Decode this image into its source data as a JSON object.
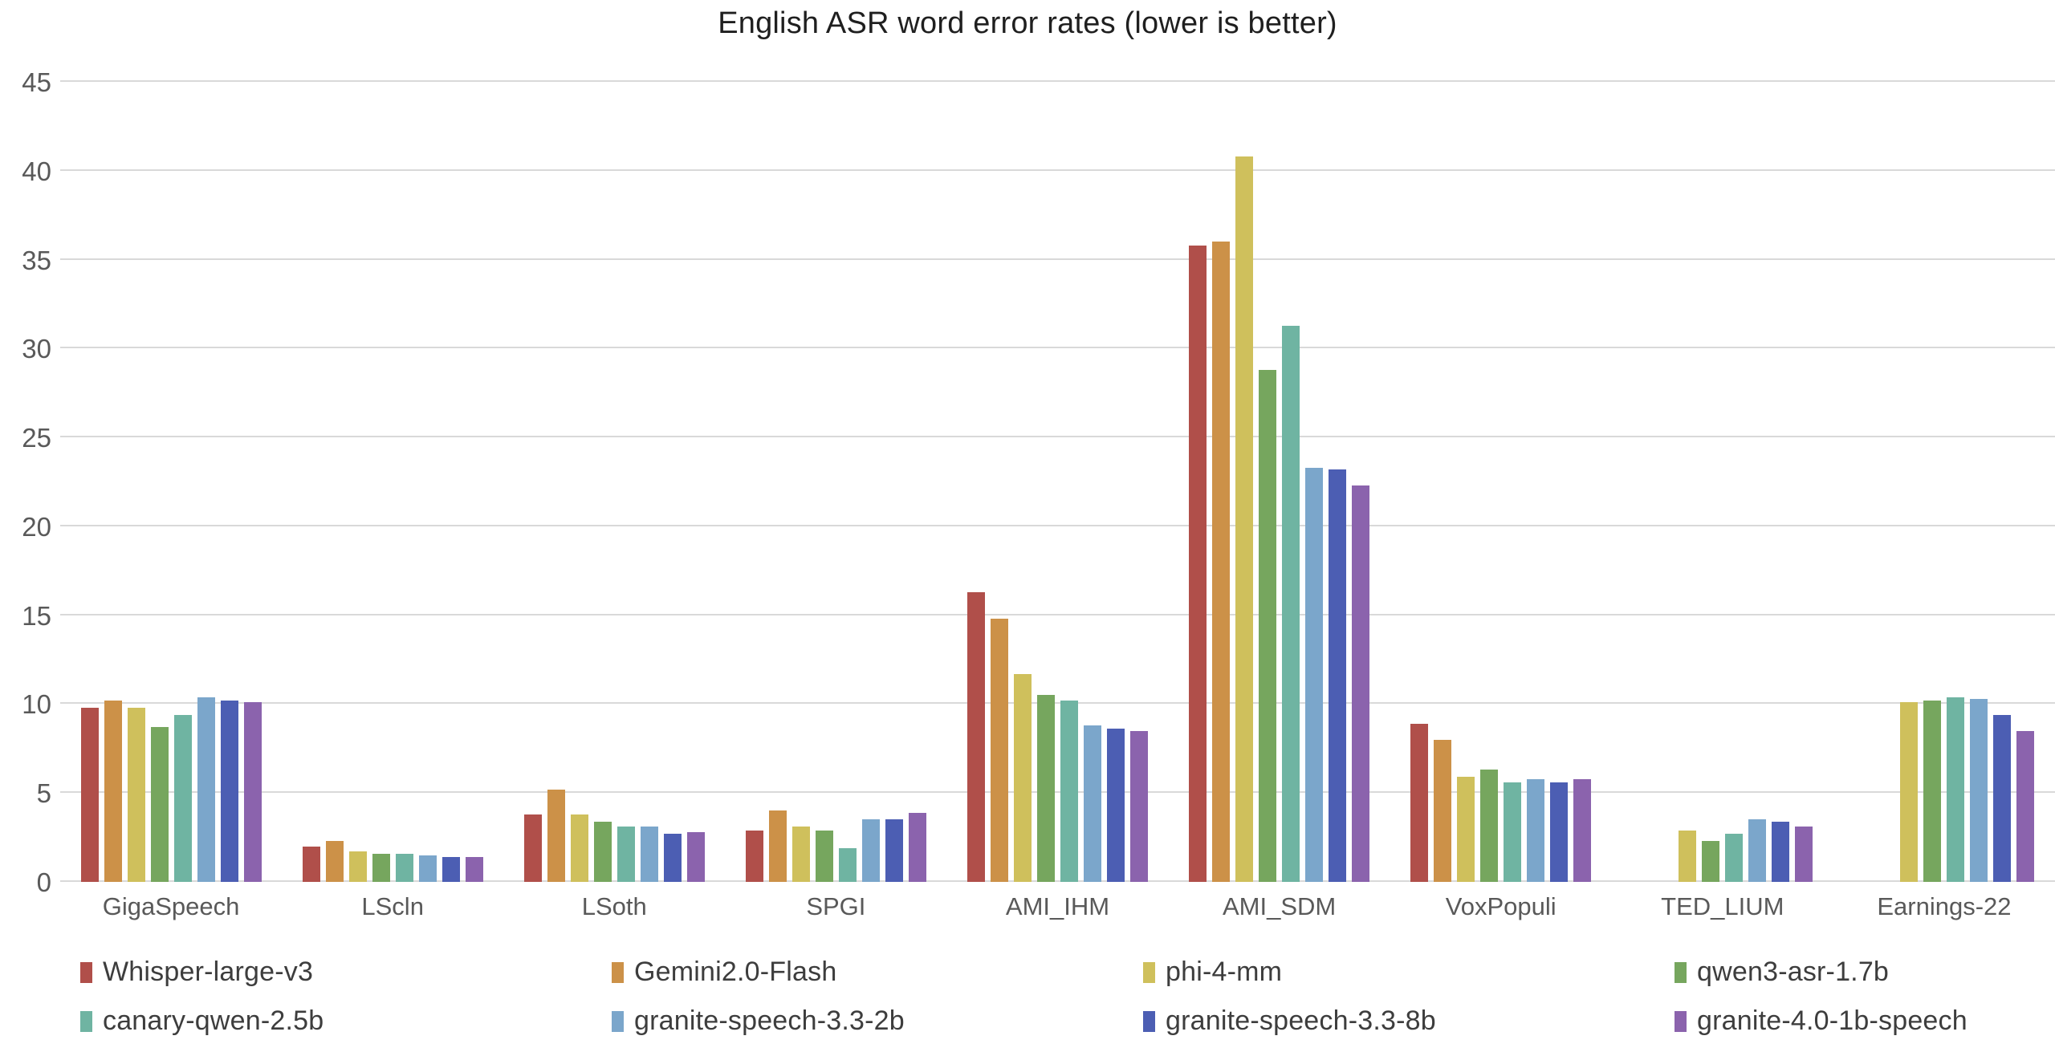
{
  "title": "English ASR word error rates (lower is better)",
  "chart_data": {
    "type": "bar",
    "title": "English ASR word error rates (lower is better)",
    "categories": [
      "GigaSpeech",
      "LScln",
      "LSoth",
      "SPGI",
      "AMI_IHM",
      "AMI_SDM",
      "VoxPopuli",
      "TED_LIUM",
      "Earnings-22"
    ],
    "series": [
      {
        "name": "Whisper-large-v3",
        "color": "#b04f4a",
        "values": [
          9.8,
          2.0,
          3.8,
          2.9,
          16.3,
          35.8,
          8.9,
          null,
          null
        ]
      },
      {
        "name": "Gemini2.0-Flash",
        "color": "#cc9148",
        "values": [
          10.2,
          2.3,
          5.2,
          4.0,
          14.8,
          36.0,
          8.0,
          null,
          null
        ]
      },
      {
        "name": "phi-4-mm",
        "color": "#cfc05c",
        "values": [
          9.8,
          1.7,
          3.8,
          3.1,
          11.7,
          40.8,
          5.9,
          2.9,
          10.1
        ]
      },
      {
        "name": "qwen3-asr-1.7b",
        "color": "#76a65e",
        "values": [
          8.7,
          1.6,
          3.4,
          2.9,
          10.5,
          28.8,
          6.3,
          2.3,
          10.2
        ]
      },
      {
        "name": "canary-qwen-2.5b",
        "color": "#6fb4a2",
        "values": [
          9.4,
          1.6,
          3.1,
          1.9,
          10.2,
          31.3,
          5.6,
          2.7,
          10.4
        ]
      },
      {
        "name": "granite-speech-3.3-2b",
        "color": "#7ba6cb",
        "values": [
          10.4,
          1.5,
          3.1,
          3.5,
          8.8,
          23.3,
          5.8,
          3.5,
          10.3
        ]
      },
      {
        "name": "granite-speech-3.3-8b",
        "color": "#4c5eb3",
        "values": [
          10.2,
          1.4,
          2.7,
          3.5,
          8.6,
          23.2,
          5.6,
          3.4,
          9.4
        ]
      },
      {
        "name": "granite-4.0-1b-speech",
        "color": "#8b63ad",
        "values": [
          10.1,
          1.4,
          2.8,
          3.9,
          8.5,
          22.3,
          5.8,
          3.1,
          8.5
        ]
      }
    ],
    "ylim": [
      0,
      45
    ],
    "yticks": [
      0,
      5,
      10,
      15,
      20,
      25,
      30,
      35,
      40,
      45
    ],
    "xlabel": "",
    "ylabel": "",
    "grid": "horizontal",
    "legend_position": "bottom-left, 2 rows x 4 columns",
    "colors": {
      "gridline": "#d9d9d9",
      "axis_text": "#595959",
      "title_text": "#1f1f1f",
      "legend_text": "#3d3d3d",
      "background": "#ffffff"
    }
  }
}
